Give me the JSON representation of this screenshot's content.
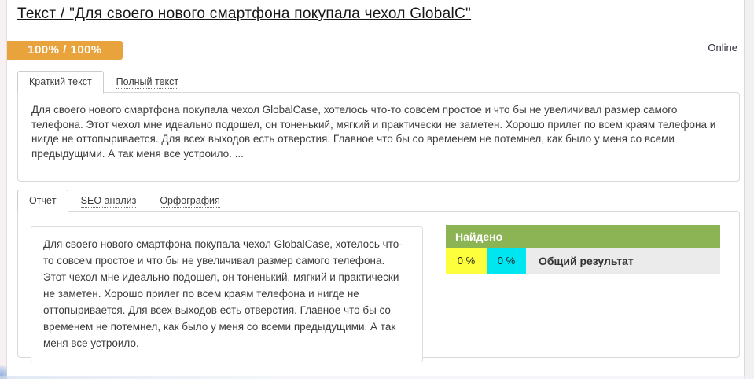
{
  "page": {
    "title": "Текст / \"Для своего нового смартфона покупала чехол GlobalC\"",
    "score_badge": "100% / 100%",
    "online_status": "Online"
  },
  "text_tabs": [
    {
      "label": "Краткий текст",
      "active": true
    },
    {
      "label": "Полный текст",
      "active": false
    }
  ],
  "short_text": "Для своего нового смартфона покупала чехол GlobalCase, хотелось что-то совсем простое и что бы не увеличивал размер самого телефона. Этот чехол мне идеально подошел, он тоненький, мягкий и практически не заметен. Хорошо прилег по всем краям телефона и нигде не оттопыривается. Для всех выходов есть отверстия. Главное что бы со временем не потемнел, как было у меня со всеми предыдущими. А так меня все устроило. ...",
  "report_tabs": [
    {
      "label": "Отчёт",
      "active": true
    },
    {
      "label": "SEO анализ",
      "active": false
    },
    {
      "label": "Орфография",
      "active": false
    }
  ],
  "report_text": "Для своего нового смартфона покупала чехол GlobalCase, хотелось что-то совсем простое и что бы не увеличивал размер самого телефона. Этот чехол мне идеально подошел, он тоненький, мягкий и практически не заметен. Хорошо прилег по всем краям телефона и нигде не оттопыривается. Для всех выходов есть отверстия. Главное что бы со временем не потемнел, как было у меня со всеми предыдущими. А так меня все устроило.",
  "results_table": {
    "header": "Найдено",
    "rows": [
      {
        "unique_percent": "0 %",
        "rewrite_percent": "0 %",
        "label": "Общий результат"
      }
    ]
  },
  "colors": {
    "badge_orange": "#e8a33d",
    "table_header_green": "#8db454",
    "cell_yellow": "#fdff3d",
    "cell_cyan": "#00e6f0",
    "row_gray": "#ebebeb"
  }
}
